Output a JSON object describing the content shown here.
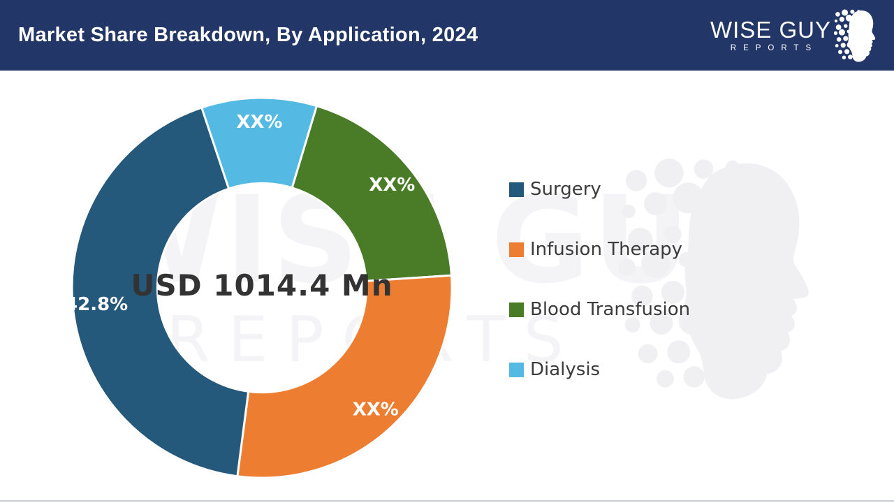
{
  "header": {
    "title": "Market Share Breakdown, By Application, 2024",
    "bg_color": "#223768",
    "logo_line1": "WISE GUY",
    "logo_line2": "REPORTS"
  },
  "watermark": {
    "line1": "WISE GUY",
    "line2": "REPORTS"
  },
  "chart_data": {
    "type": "pie",
    "subtype": "donut",
    "title": "Market Share Breakdown, By Application, 2024",
    "center_label": "USD 1014.4 Mn",
    "inner_radius_ratio": 0.55,
    "rotation_deg": -18.5,
    "legend_position": "right",
    "slices": [
      {
        "label": "Dialysis",
        "value": 9.8,
        "display": "XX%",
        "color": "#54B9E3"
      },
      {
        "label": "Blood Transfusion",
        "value": 19.3,
        "display": "XX%",
        "color": "#4A7C28"
      },
      {
        "label": "Infusion Therapy",
        "value": 28.1,
        "display": "XX%",
        "color": "#ED7D31"
      },
      {
        "label": "Surgery",
        "value": 42.8,
        "display": "42.8%",
        "color": "#25597C"
      }
    ],
    "legend_order": [
      "Surgery",
      "Infusion Therapy",
      "Blood Transfusion",
      "Dialysis"
    ]
  }
}
